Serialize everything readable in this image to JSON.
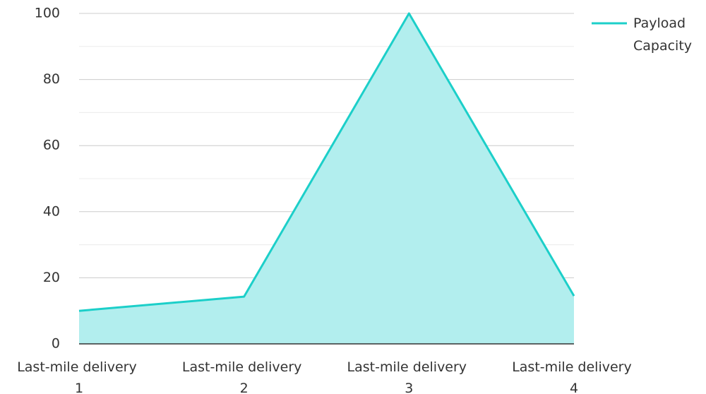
{
  "chart_data": {
    "type": "area",
    "categories": [
      "Last-mile delivery 1",
      "Last-mile delivery 2",
      "Last-mile delivery 3",
      "Last-mile delivery 4"
    ],
    "series": [
      {
        "name": "Payload Capacity",
        "color": "#1ccfc9",
        "fill": "#b2eeee",
        "values": [
          10,
          14.3,
          100,
          14.5
        ]
      }
    ],
    "ylim": [
      0,
      100
    ],
    "yticks": [
      0,
      20,
      40,
      60,
      80,
      100
    ],
    "grid": true,
    "legend": "top-right"
  }
}
